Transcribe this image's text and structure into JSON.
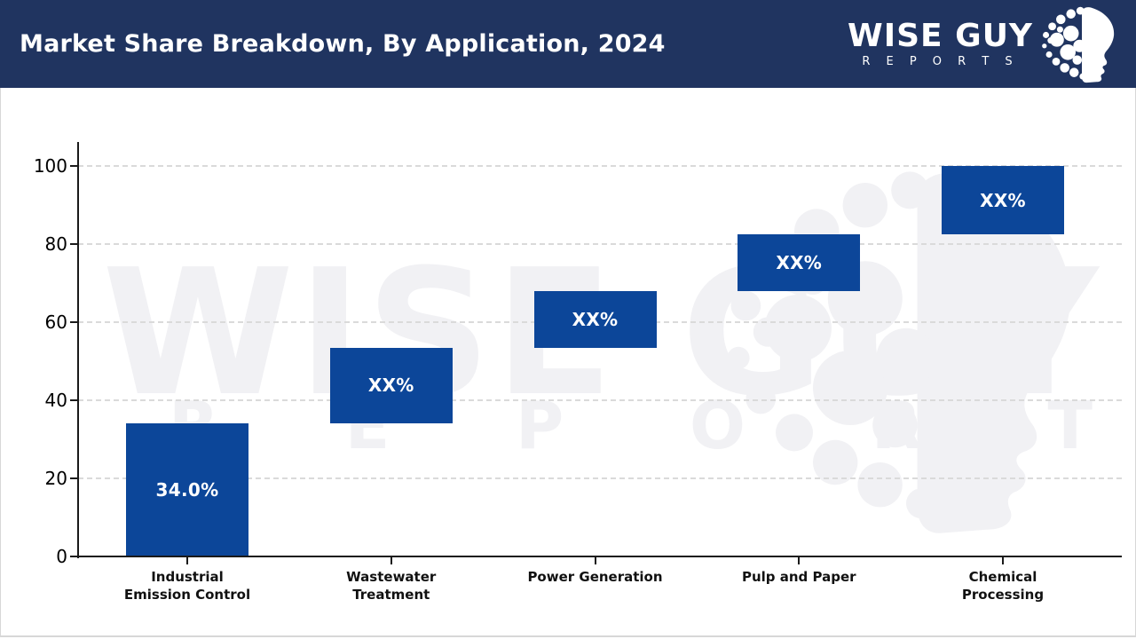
{
  "header": {
    "title": "Market Share Breakdown, By Application, 2024",
    "logo": {
      "name": "WISE GUY",
      "sub": "R E P O R T S"
    }
  },
  "watermark": {
    "name": "WISE GUY",
    "sub": "R E P O R T S"
  },
  "chart_data": {
    "type": "bar",
    "subtype": "floating-waterfall",
    "title": "Market Share Breakdown, By Application, 2024",
    "categories": [
      "Industrial Emission Control",
      "Wastewater Treatment",
      "Power Generation",
      "Pulp and Paper",
      "Chemical Processing"
    ],
    "category_label_lines": [
      [
        "Industrial",
        "Emission Control"
      ],
      [
        "Wastewater",
        "Treatment"
      ],
      [
        "Power Generation"
      ],
      [
        "Pulp and Paper"
      ],
      [
        "Chemical",
        "Processing"
      ]
    ],
    "segments": [
      {
        "category": "Industrial Emission Control",
        "start": 0,
        "end": 34,
        "label": "34.0%"
      },
      {
        "category": "Wastewater Treatment",
        "start": 34,
        "end": 53.5,
        "label": "XX%"
      },
      {
        "category": "Power Generation",
        "start": 53.5,
        "end": 68,
        "label": "XX%"
      },
      {
        "category": "Pulp and Paper",
        "start": 68,
        "end": 82.5,
        "label": "XX%"
      },
      {
        "category": "Chemical Processing",
        "start": 82.5,
        "end": 100,
        "label": "XX%"
      }
    ],
    "yticks": [
      0,
      20,
      40,
      60,
      80,
      100
    ],
    "ylim": [
      0,
      106
    ],
    "xlabel": "",
    "ylabel": "",
    "grid": "horizontal-dashed",
    "legend": null
  },
  "colors": {
    "header_bg": "#203460",
    "bar": "#0c4699",
    "bar_label": "#ffffff",
    "grid": "#dadada",
    "axis": "#1a1a1a",
    "watermark": "#f1f1f4",
    "border": "#d7d7d7"
  }
}
